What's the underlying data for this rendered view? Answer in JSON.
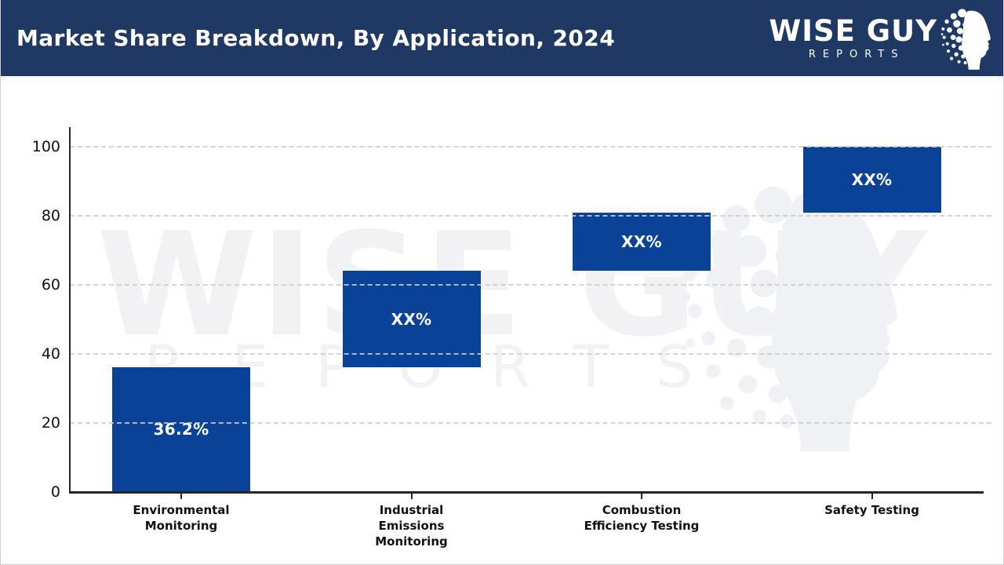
{
  "header": {
    "title": "Market Share Breakdown, By Application, 2024",
    "logo": {
      "line1": "WISE GUY",
      "line2": "REPORTS"
    }
  },
  "watermark": {
    "line1": "WISE GUY",
    "line2": "REPORTS"
  },
  "chart_data": {
    "type": "bar",
    "subtype": "floating-waterfall",
    "title": "Market Share Breakdown, By Application, 2024",
    "categories": [
      "Environmental\nMonitoring",
      "Industrial\nEmissions\nMonitoring",
      "Combustion\nEfficiency Testing",
      "Safety Testing"
    ],
    "bars": [
      {
        "start": 0,
        "end": 36.2,
        "label": "36.2%"
      },
      {
        "start": 36.2,
        "end": 64,
        "label": "XX%"
      },
      {
        "start": 64,
        "end": 81,
        "label": "XX%"
      },
      {
        "start": 81,
        "end": 100,
        "label": "XX%"
      }
    ],
    "ylim": [
      0,
      100
    ],
    "yticks": [
      0,
      20,
      40,
      60,
      80,
      100
    ],
    "xlabel": "",
    "ylabel": "",
    "grid": "horizontal-dashed",
    "legend": "none",
    "bar_color": "#0a4298",
    "bar_label_color": "#ffffff"
  },
  "colors": {
    "header_bg": "#1f3864",
    "bar": "#0a4298",
    "watermark": "#f2f2f4",
    "grid": "#cccccc",
    "axis": "#262626"
  }
}
